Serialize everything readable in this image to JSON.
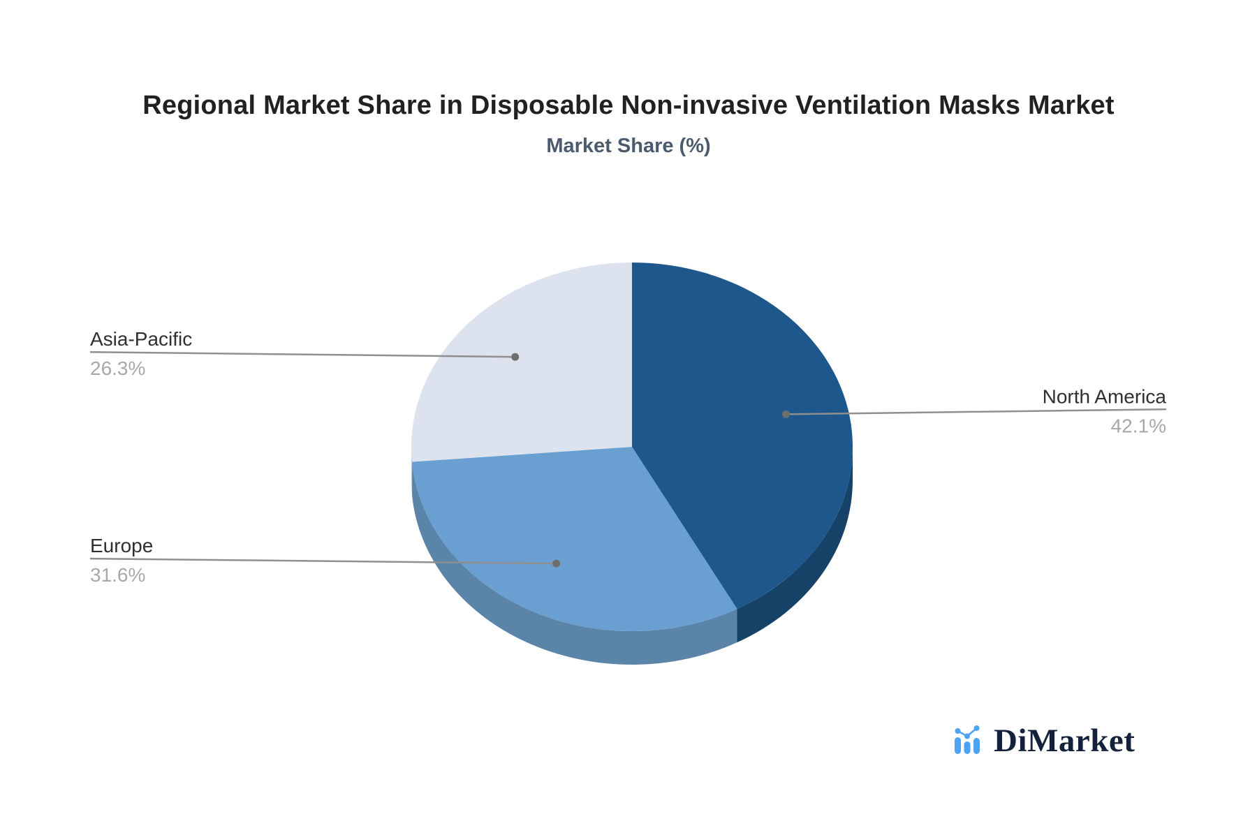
{
  "header": {
    "title": "Regional Market Share in Disposable Non-invasive Ventilation Masks Market",
    "subtitle": "Market Share (%)"
  },
  "logo": {
    "text": "DiMarket",
    "icon": "bar-line-chart-icon",
    "icon_color": "#4da3f3",
    "text_color": "#14213a"
  },
  "chart_data": {
    "type": "pie",
    "title": "Regional Market Share in Disposable Non-invasive Ventilation Masks Market",
    "subtitle": "Market Share (%)",
    "unit": "%",
    "legend_position": "none",
    "label_style": "callout-lines-with-dots",
    "start_angle_deg": 0,
    "direction": "clockwise",
    "effect": "3d-extruded-ellipse",
    "slices": [
      {
        "label": "North America",
        "value": 42.1,
        "value_label": "42.1%",
        "color": "#1d578b",
        "side_color": "#164268",
        "callout_side": "right"
      },
      {
        "label": "Europe",
        "value": 31.6,
        "value_label": "31.6%",
        "color": "#699fd1",
        "side_color": "#5b84a9",
        "callout_side": "left"
      },
      {
        "label": "Asia-Pacific",
        "value": 26.3,
        "value_label": "26.3%",
        "color": "#dce3ee",
        "side_color": "#c0c9da",
        "callout_side": "left"
      }
    ],
    "style": {
      "label_color": "#2f2f2f",
      "value_color": "#a8a8a8",
      "line_color": "#8f8f8f",
      "dot_color": "#6e6e6e"
    }
  }
}
